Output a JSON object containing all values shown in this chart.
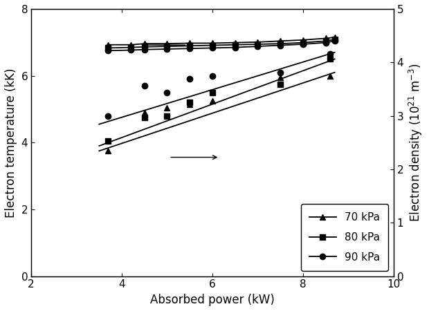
{
  "xlabel": "Absorbed power (kW)",
  "ylabel_left": "Electron temperature (kK)",
  "ylabel_right": "Electron density (10$^{21}$ m$^{-3}$)",
  "xlim": [
    2,
    10
  ],
  "ylim_left": [
    0,
    8
  ],
  "ylim_right": [
    0,
    5
  ],
  "xticks": [
    2,
    4,
    6,
    8,
    10
  ],
  "yticks_left": [
    0,
    2,
    4,
    6,
    8
  ],
  "yticks_right": [
    0,
    1,
    2,
    3,
    4,
    5
  ],
  "temp_70kPa_x": [
    3.7,
    4.5,
    5.0,
    5.5,
    6.0,
    7.5,
    8.6
  ],
  "temp_70kPa_y": [
    3.75,
    4.9,
    5.05,
    5.15,
    5.25,
    5.95,
    6.0
  ],
  "temp_70kPa_fit_x": [
    3.5,
    8.7
  ],
  "temp_70kPa_fit_y": [
    3.75,
    6.1
  ],
  "temp_80kPa_x": [
    3.7,
    4.5,
    5.0,
    5.5,
    6.0,
    7.5,
    8.6
  ],
  "temp_80kPa_y": [
    4.05,
    4.75,
    4.8,
    5.2,
    5.5,
    5.75,
    6.5
  ],
  "temp_80kPa_fit_x": [
    3.5,
    8.7
  ],
  "temp_80kPa_fit_y": [
    3.9,
    6.5
  ],
  "temp_90kPa_x": [
    3.7,
    4.5,
    5.0,
    5.5,
    6.0,
    7.5,
    8.6
  ],
  "temp_90kPa_y": [
    4.8,
    5.7,
    5.5,
    5.9,
    6.0,
    6.1,
    6.65
  ],
  "temp_90kPa_fit_x": [
    3.5,
    8.7
  ],
  "temp_90kPa_fit_y": [
    4.55,
    6.7
  ],
  "dens_70kPa_x": [
    3.7,
    4.2,
    4.5,
    5.0,
    5.5,
    6.0,
    6.5,
    7.0,
    7.5,
    8.0,
    8.5,
    8.7
  ],
  "dens_70kPa_y": [
    4.33,
    4.33,
    4.35,
    4.35,
    4.36,
    4.36,
    4.37,
    4.38,
    4.4,
    4.42,
    4.45,
    4.47
  ],
  "dens_80kPa_x": [
    3.7,
    4.2,
    4.5,
    5.0,
    5.5,
    6.0,
    6.5,
    7.0,
    7.5,
    8.0,
    8.5,
    8.7
  ],
  "dens_80kPa_y": [
    4.27,
    4.28,
    4.29,
    4.3,
    4.31,
    4.32,
    4.33,
    4.34,
    4.35,
    4.37,
    4.4,
    4.43
  ],
  "dens_90kPa_x": [
    3.7,
    4.2,
    4.5,
    5.0,
    5.5,
    6.0,
    6.5,
    7.0,
    7.5,
    8.0,
    8.5,
    8.7
  ],
  "dens_90kPa_y": [
    4.22,
    4.23,
    4.24,
    4.25,
    4.26,
    4.27,
    4.28,
    4.3,
    4.32,
    4.34,
    4.37,
    4.4
  ],
  "legend_labels": [
    "70 kPa",
    "80 kPa",
    "90 kPa"
  ],
  "marker_color": "black",
  "line_color": "black",
  "fontsize": 12
}
